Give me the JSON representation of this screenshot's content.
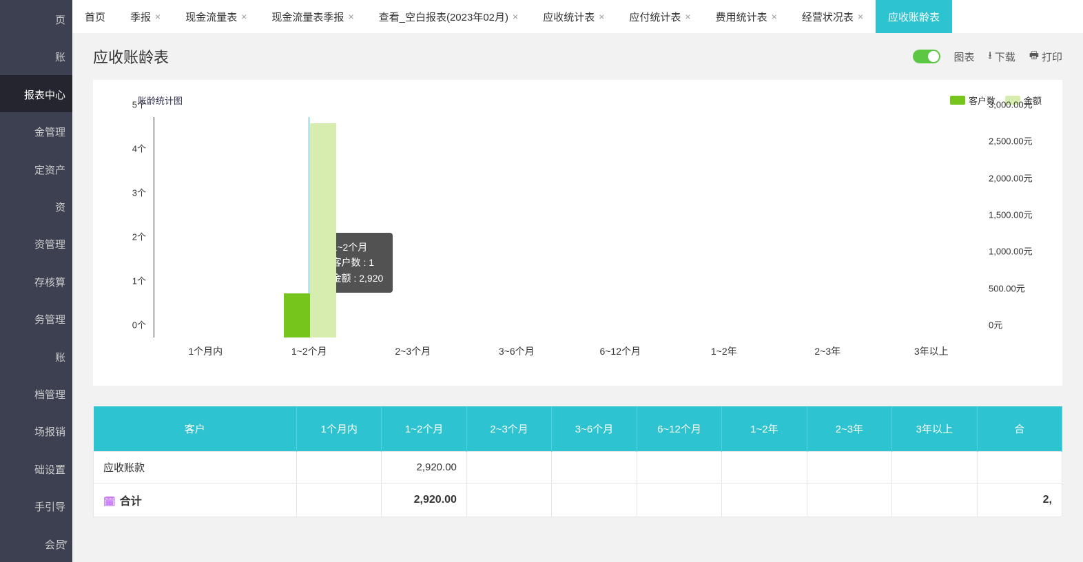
{
  "sidebar": {
    "items": [
      {
        "label": "页"
      },
      {
        "label": "账"
      },
      {
        "label": "报表中心",
        "active": true
      },
      {
        "label": "金管理"
      },
      {
        "label": "定资产"
      },
      {
        "label": "资"
      },
      {
        "label": "资管理"
      },
      {
        "label": "存核算"
      },
      {
        "label": "务管理"
      },
      {
        "label": "账"
      },
      {
        "label": "档管理"
      },
      {
        "label": "场报销"
      },
      {
        "label": "础设置"
      },
      {
        "label": "手引导"
      },
      {
        "label": "会员"
      }
    ]
  },
  "tabs": [
    {
      "label": "首页",
      "closable": false
    },
    {
      "label": "季报",
      "closable": true
    },
    {
      "label": "现金流量表",
      "closable": true
    },
    {
      "label": "现金流量表季报",
      "closable": true
    },
    {
      "label": "查看_空白报表(2023年02月)",
      "closable": true
    },
    {
      "label": "应收统计表",
      "closable": true
    },
    {
      "label": "应付统计表",
      "closable": true
    },
    {
      "label": "费用统计表",
      "closable": true
    },
    {
      "label": "经营状况表",
      "closable": true
    },
    {
      "label": "应收账龄表",
      "closable": false,
      "active": true
    }
  ],
  "page": {
    "title": "应收账龄表",
    "chart_toggle_label": "图表",
    "download_label": "下载",
    "print_label": "打印"
  },
  "chart": {
    "type": "bar",
    "title": "账龄统计图",
    "legend": [
      {
        "label": "客户数",
        "color": "#76c51d"
      },
      {
        "label": "金额",
        "color": "#d7ecaf"
      }
    ],
    "categories": [
      "1个月内",
      "1~2个月",
      "2~3个月",
      "3~6个月",
      "6~12个月",
      "1~2年",
      "2~3年",
      "3年以上"
    ],
    "left_axis": {
      "min": 0,
      "max": 5,
      "step": 1,
      "unit": "个"
    },
    "right_axis": {
      "min": 0,
      "max": 3000,
      "step": 500,
      "unit": "元",
      "labels": [
        "0元",
        "500.00元",
        "1,000.00元",
        "1,500.00元",
        "2,000.00元",
        "2,500.00元",
        "3,000.00元"
      ]
    },
    "series": {
      "customers": [
        0,
        1,
        0,
        0,
        0,
        0,
        0,
        0
      ],
      "amount": [
        0,
        2920,
        0,
        0,
        0,
        0,
        0,
        0
      ]
    },
    "colors": {
      "customers": "#76c51d",
      "amount": "#d7ecaf",
      "hover_line": "#30acce",
      "tooltip_bg": "#525252"
    },
    "tooltip": {
      "category": "1~2个月",
      "l1": "客户数 : 1",
      "l2": "金额 : 2,920"
    }
  },
  "table": {
    "columns": [
      "客户",
      "1个月内",
      "1~2个月",
      "2~3个月",
      "3~6个月",
      "6~12个月",
      "1~2年",
      "2~3年",
      "3年以上",
      "合"
    ],
    "rows": [
      {
        "label": "应收账款",
        "cells": [
          "",
          "2,920.00",
          "",
          "",
          "",
          "",
          "",
          "",
          ""
        ]
      }
    ],
    "total": {
      "label": "合计",
      "cells": [
        "",
        "2,920.00",
        "",
        "",
        "",
        "",
        "",
        "",
        "2,"
      ]
    }
  },
  "colors": {
    "accent": "#2dc3d1",
    "sidebar": "#3d4050",
    "toggle_on": "#5bc742"
  }
}
